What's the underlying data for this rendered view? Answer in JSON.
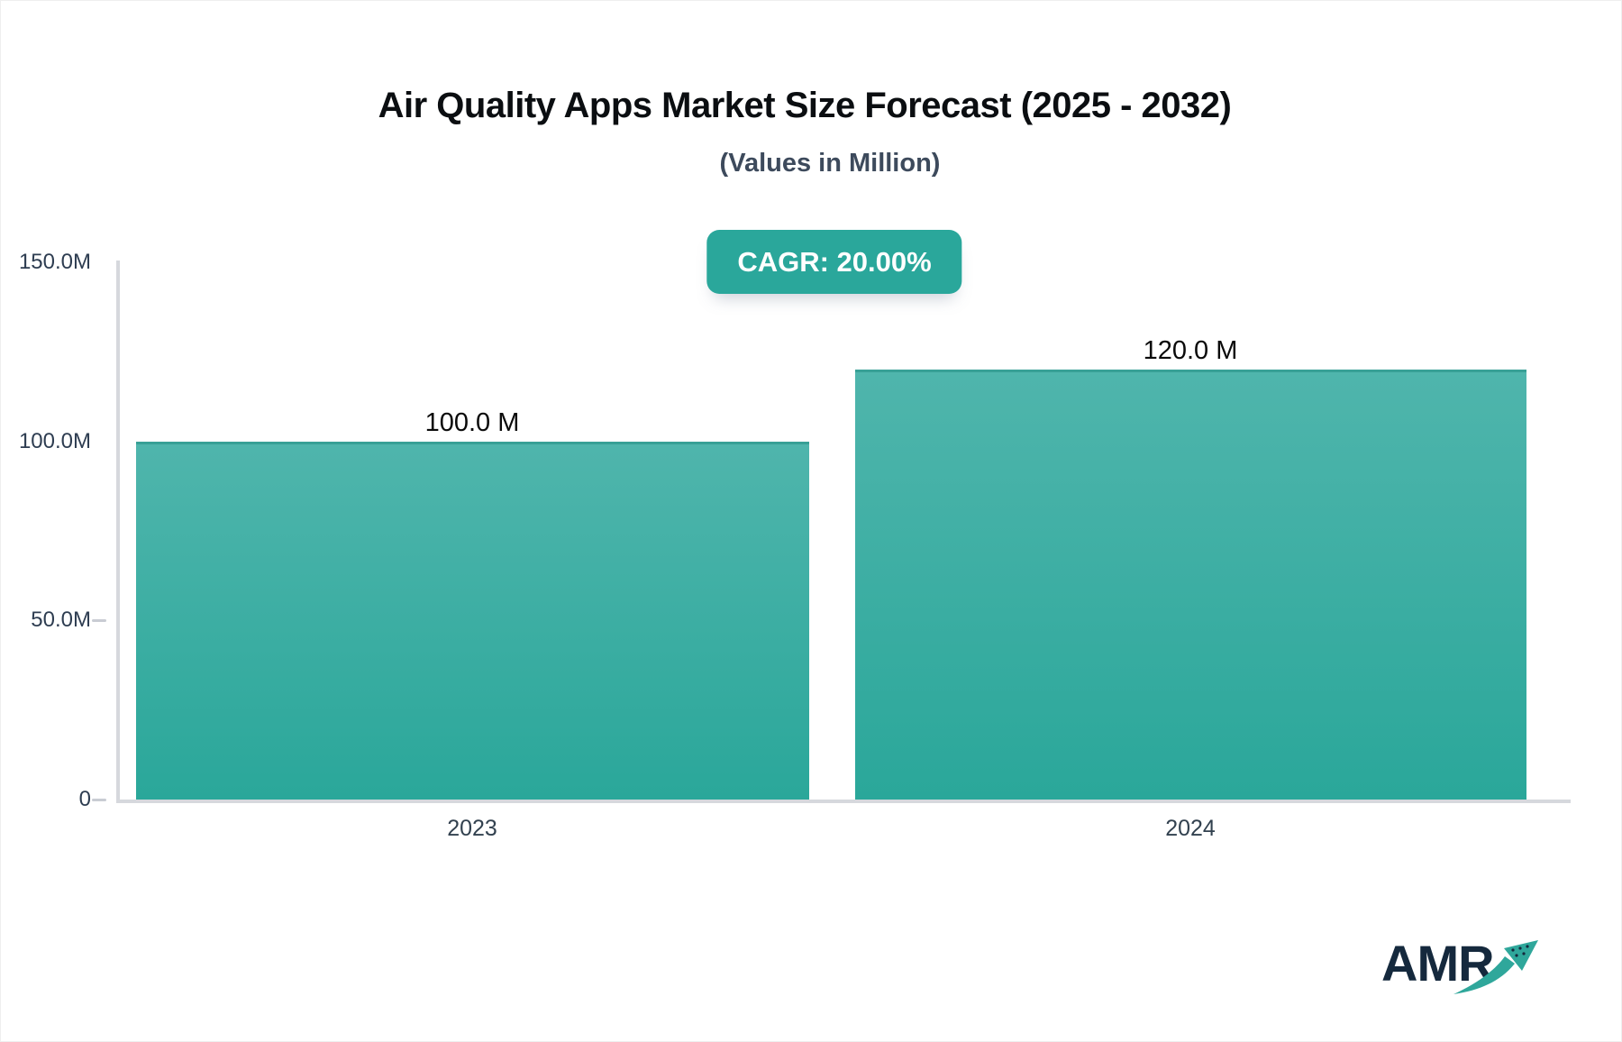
{
  "header": {
    "title": "Air Quality Apps Market Size Forecast (2025 - 2032)",
    "subtitle": "(Values in Million)",
    "cagr_label": "CAGR: 20.00%"
  },
  "chart_data": {
    "type": "bar",
    "title": "Air Quality Apps Market Size Forecast (2025 - 2032)",
    "subtitle": "(Values in Million)",
    "cagr_percent": "20.00%",
    "unit": "Million",
    "categories": [
      "2023",
      "2024"
    ],
    "values": [
      100.0,
      120.0
    ],
    "bar_labels": [
      "100.0 M",
      "120.0 M"
    ],
    "yticks": [
      "150.0M",
      "100.0M",
      "50.0M",
      "0"
    ],
    "ytick_values": [
      150,
      100,
      50,
      0
    ],
    "ylim": [
      0,
      150
    ],
    "grid": false,
    "legend": "none"
  },
  "logo": {
    "text": "AMR"
  },
  "colors": {
    "accent_teal": "#2AA79B",
    "bar_gradient_top": "#4FB5AC",
    "bar_gradient_bottom": "#2AA79A",
    "bar_top_edge": "#38A096",
    "axis_line": "#D6D8DD",
    "tick_dash": "#C9CCD3",
    "tick_label_color": "#2E3D51",
    "title_color": "#0B0E11",
    "subtitle_color": "#3D4A5C",
    "badge_text": "#FFFFFF",
    "logo_navy": "#15293D"
  }
}
